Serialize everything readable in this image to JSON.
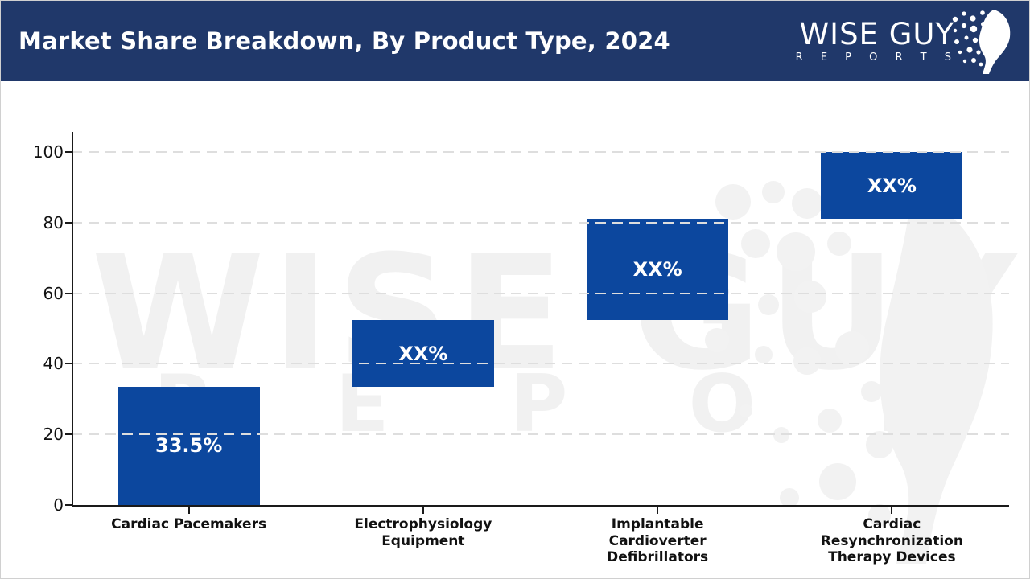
{
  "header": {
    "title": "Market Share Breakdown, By Product Type, 2024",
    "logo": {
      "line1": "WISE GUY",
      "line2": "R E P O R T S"
    }
  },
  "watermark": {
    "line1": "WISE GUY",
    "line2": "R E P O R T S"
  },
  "chart_data": {
    "type": "bar",
    "subtype": "waterfall",
    "title": "Market Share Breakdown, By Product Type, 2024",
    "categories": [
      "Cardiac Pacemakers",
      "Electrophysiology\nEquipment",
      "Implantable\nCardioverter\nDefibrillators",
      "Cardiac\nResynchronization\nTherapy Devices"
    ],
    "segments": [
      {
        "category": "Cardiac Pacemakers",
        "start": 0,
        "end": 33.5,
        "label": "33.5%"
      },
      {
        "category": "Electrophysiology Equipment",
        "start": 33.5,
        "end": 52.3,
        "label": "XX%"
      },
      {
        "category": "Implantable Cardioverter Defibrillators",
        "start": 52.3,
        "end": 81.0,
        "label": "XX%"
      },
      {
        "category": "Cardiac Resynchronization Therapy Devices",
        "start": 81.0,
        "end": 100,
        "label": "XX%"
      }
    ],
    "xlabel": "",
    "ylabel": "",
    "ylim": [
      0,
      100
    ],
    "yticks": [
      0,
      20,
      40,
      60,
      80,
      100
    ],
    "grid": "horizontal-dashed",
    "legend": "none",
    "colors": {
      "bar": "#0C479E",
      "bar_label": "#FFFFFF",
      "axis": "#1A1A1A",
      "grid": "#DEDEDE",
      "header_bg": "#20386A",
      "header_text": "#FFFFFF",
      "watermark": "#F1F1F1"
    }
  }
}
